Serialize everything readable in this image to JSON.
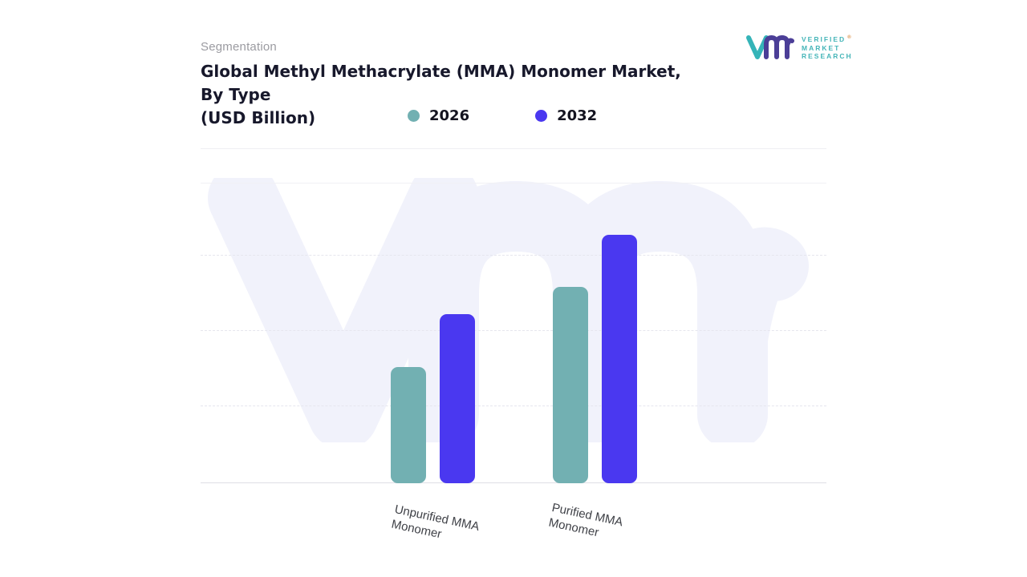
{
  "header": {
    "eyebrow": "Segmentation",
    "title_line1": "Global Methyl Methacrylate (MMA) Monomer Market,",
    "title_line2": "By Type",
    "title_line3": "(USD Billion)"
  },
  "legend": {
    "items": [
      {
        "label": "2026",
        "color": "#72b0b2"
      },
      {
        "label": "2032",
        "color": "#4a38f0"
      }
    ]
  },
  "logo": {
    "brand_line1": "VERIFIED",
    "brand_line2": "MARKET",
    "brand_line3": "RESEARCH",
    "registered_mark": "®"
  },
  "watermark": {
    "color": "#f1f2fb"
  },
  "chart_data": {
    "type": "bar",
    "title": "Global Methyl Methacrylate (MMA) Monomer Market, By Type (USD Billion)",
    "categories": [
      "Unpurified MMA Monomer",
      "Purified MMA Monomer"
    ],
    "series": [
      {
        "name": "2026",
        "color": "#72b0b2",
        "values": [
          38.7,
          65.3
        ]
      },
      {
        "name": "2032",
        "color": "#4a38f0",
        "values": [
          56.3,
          82.7
        ]
      }
    ],
    "xlabel": "",
    "ylabel": "",
    "ylim": [
      0,
      100
    ],
    "value_scale": "relative bar height percent (y-axis unlabeled in source)",
    "grid": "horizontal dashed",
    "legend_position": "top"
  }
}
